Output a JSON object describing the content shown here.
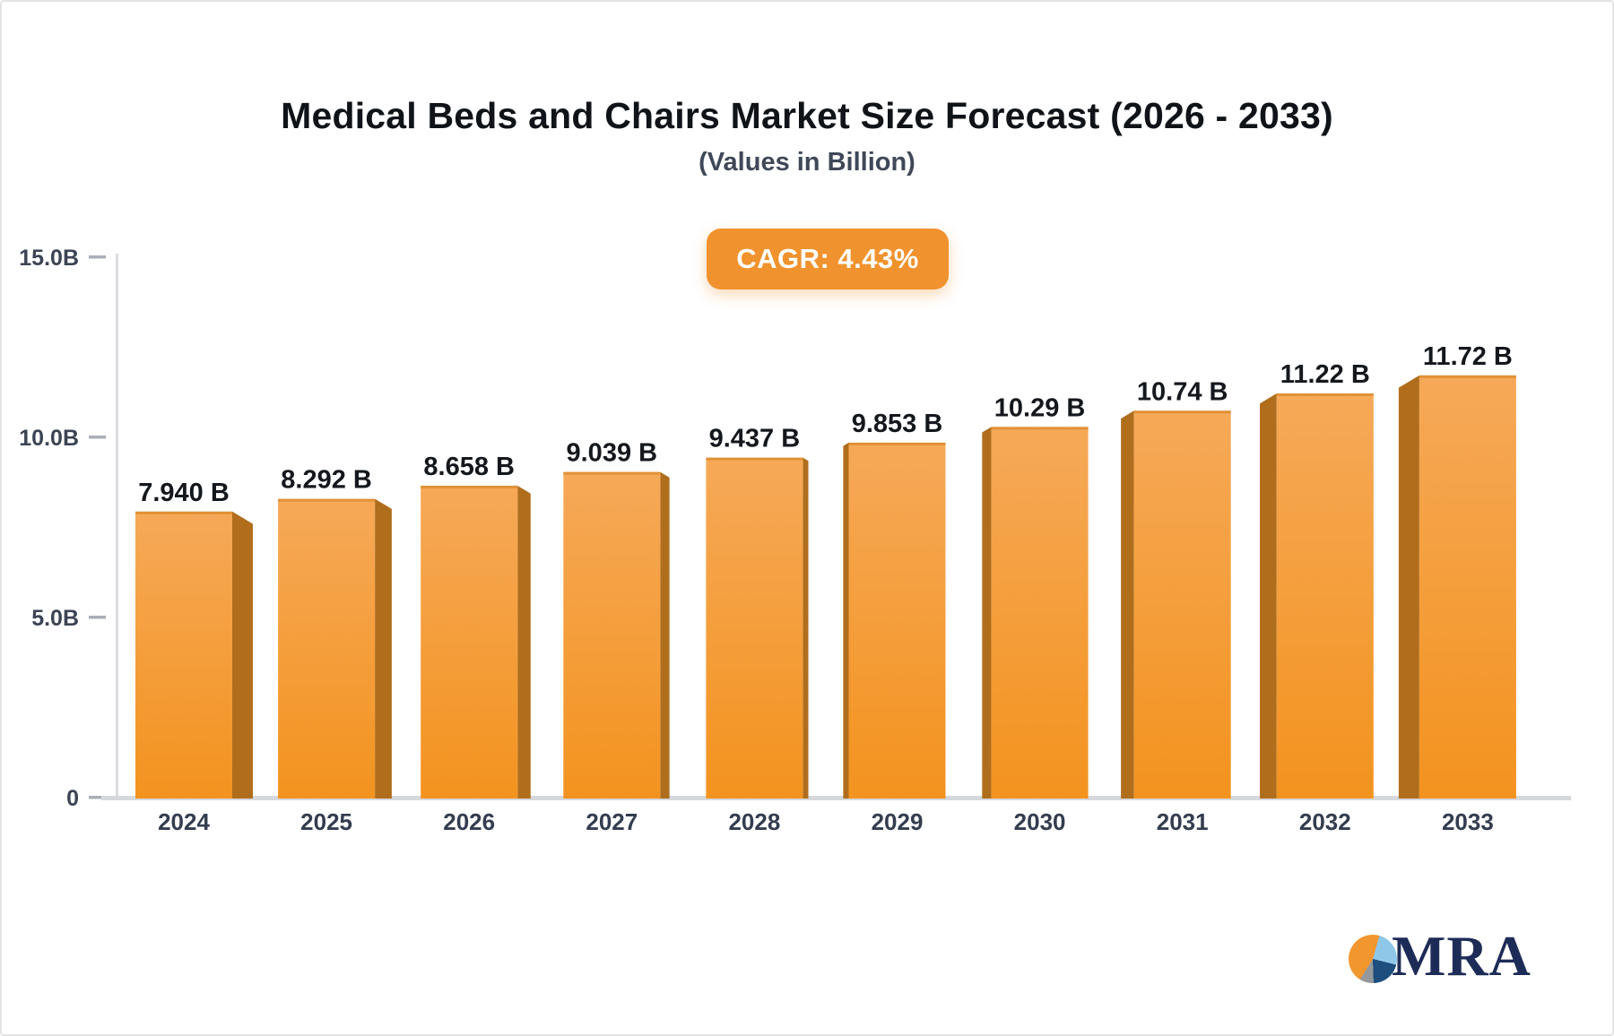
{
  "header": {
    "title": "Medical Beds and Chairs Market Size Forecast (2026 - 2033)",
    "subtitle": "(Values in Billion)",
    "cagr_label": "CAGR: 4.43%",
    "badge_color": "#F0922D"
  },
  "chart_data": {
    "type": "bar",
    "title": "Medical Beds and Chairs Market Size Forecast (2026 - 2033)",
    "subtitle": "(Values in Billion)",
    "annotation": "CAGR: 4.43%",
    "categories": [
      "2024",
      "2025",
      "2026",
      "2027",
      "2028",
      "2029",
      "2030",
      "2031",
      "2032",
      "2033"
    ],
    "values": [
      7.94,
      8.292,
      8.658,
      9.039,
      9.437,
      9.853,
      10.29,
      10.74,
      11.22,
      11.72
    ],
    "value_labels": [
      "7.940 B",
      "8.292 B",
      "8.658 B",
      "9.039 B",
      "9.437 B",
      "9.853 B",
      "10.29 B",
      "10.74 B",
      "11.22 B",
      "11.72 B"
    ],
    "xlabel": "",
    "ylabel": "",
    "ylim": [
      0,
      15
    ],
    "yticks": [
      {
        "label": "15.0B",
        "value": 15
      },
      {
        "label": "10.0B",
        "value": 10
      },
      {
        "label": "5.0B",
        "value": 5
      },
      {
        "label": "0",
        "value": 0
      }
    ],
    "grid": false,
    "legend": false,
    "style_3d": true,
    "colors": {
      "bar_top": "#F6A958",
      "bar_bottom": "#F3931F",
      "bar_side": "#B06E1D",
      "bar_top_edge": "#D98A2B",
      "axis_line": "#dadce0",
      "baseline": "#d6d8db",
      "tick_dash": "#a9aeb7",
      "tick_text": "#3b4453",
      "year_text": "#333d4f",
      "value_text": "#14181d"
    }
  },
  "footer": {
    "brand": "MRA",
    "brand_text_color": "#1D2B57",
    "pie_colors": {
      "orange": "#F2962E",
      "light_blue": "#8FC7E9",
      "navy": "#1D4E7E",
      "gray": "#95989C"
    }
  }
}
